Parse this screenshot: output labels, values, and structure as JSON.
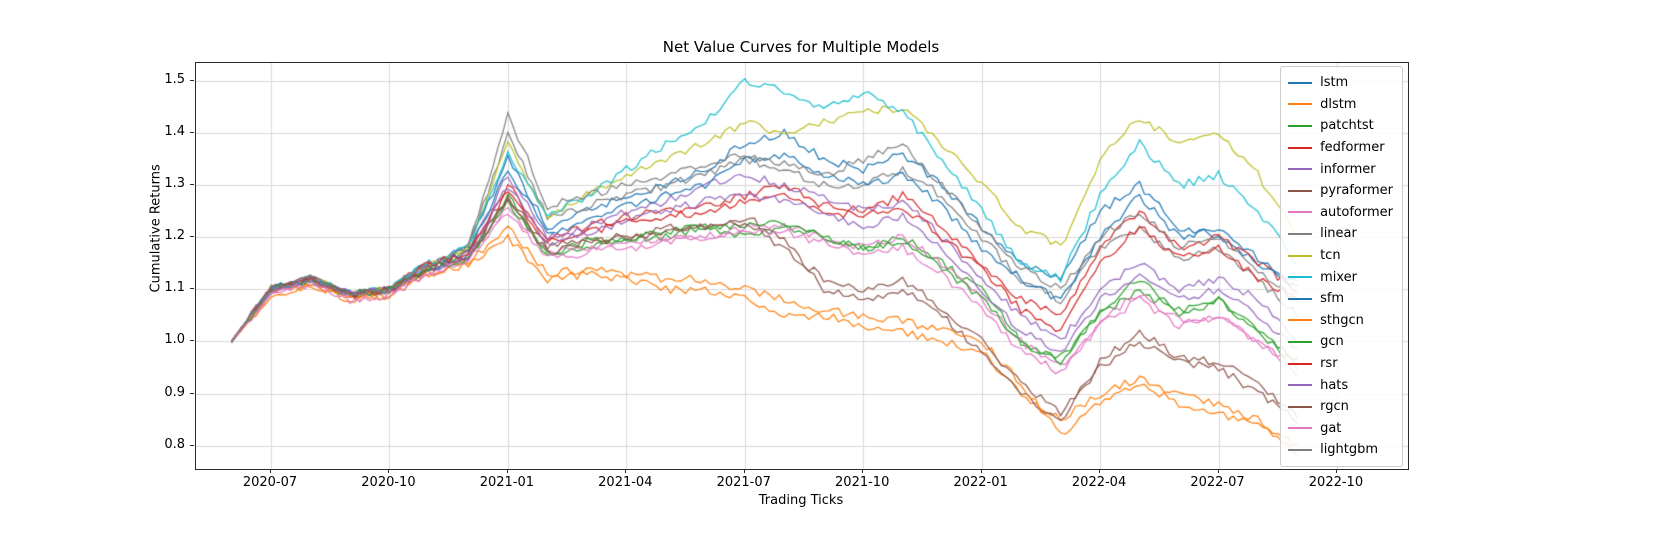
{
  "chart_data": {
    "type": "line",
    "title": "Net Value Curves for Multiple Models",
    "xlabel": "Trading Ticks",
    "ylabel": "Cumulative Returns",
    "grid": true,
    "legend_position": "upper right",
    "x_start": "2020-06",
    "x_interval": "month",
    "x_tick_labels": [
      "2020-07",
      "2020-10",
      "2021-01",
      "2021-04",
      "2021-07",
      "2021-10",
      "2022-01",
      "2022-04",
      "2022-07",
      "2022-10"
    ],
    "x_tick_positions": [
      1,
      4,
      7,
      10,
      13,
      16,
      19,
      22,
      25,
      28
    ],
    "y_ticks": [
      0.8,
      0.9,
      1.0,
      1.1,
      1.2,
      1.3,
      1.4,
      1.5
    ],
    "xlim": [
      -0.9,
      29.8
    ],
    "ylim": [
      0.755,
      1.535
    ],
    "series": [
      {
        "name": "lstm",
        "color": "#1f77b4",
        "values": [
          1.0,
          1.1,
          1.12,
          1.09,
          1.1,
          1.15,
          1.18,
          1.35,
          1.22,
          1.25,
          1.28,
          1.3,
          1.33,
          1.38,
          1.4,
          1.35,
          1.33,
          1.36,
          1.3,
          1.22,
          1.15,
          1.12,
          1.25,
          1.3,
          1.22,
          1.2,
          1.15,
          1.12
        ]
      },
      {
        "name": "dlstm",
        "color": "#ff7f0e",
        "values": [
          1.0,
          1.09,
          1.11,
          1.08,
          1.09,
          1.13,
          1.15,
          1.2,
          1.12,
          1.13,
          1.12,
          1.1,
          1.1,
          1.08,
          1.05,
          1.05,
          1.03,
          1.02,
          1.0,
          0.98,
          0.9,
          0.85,
          0.9,
          0.93,
          0.9,
          0.88,
          0.85,
          0.78
        ]
      },
      {
        "name": "patchtst",
        "color": "#2ca02c",
        "values": [
          1.0,
          1.1,
          1.12,
          1.09,
          1.1,
          1.14,
          1.17,
          1.28,
          1.16,
          1.18,
          1.2,
          1.2,
          1.22,
          1.2,
          1.22,
          1.2,
          1.18,
          1.2,
          1.15,
          1.1,
          1.0,
          0.97,
          1.05,
          1.1,
          1.05,
          1.08,
          1.02,
          0.95
        ]
      },
      {
        "name": "fedformer",
        "color": "#d62728",
        "values": [
          1.0,
          1.1,
          1.12,
          1.09,
          1.1,
          1.15,
          1.17,
          1.3,
          1.2,
          1.22,
          1.24,
          1.25,
          1.26,
          1.28,
          1.3,
          1.26,
          1.25,
          1.28,
          1.22,
          1.15,
          1.08,
          1.05,
          1.18,
          1.25,
          1.18,
          1.2,
          1.15,
          1.1
        ]
      },
      {
        "name": "informer",
        "color": "#9467bd",
        "values": [
          1.0,
          1.1,
          1.12,
          1.09,
          1.1,
          1.14,
          1.17,
          1.32,
          1.2,
          1.22,
          1.25,
          1.27,
          1.3,
          1.32,
          1.3,
          1.28,
          1.25,
          1.27,
          1.2,
          1.12,
          1.05,
          1.0,
          1.1,
          1.15,
          1.1,
          1.12,
          1.08,
          1.0
        ]
      },
      {
        "name": "pyraformer",
        "color": "#8c564b",
        "values": [
          1.0,
          1.1,
          1.12,
          1.09,
          1.1,
          1.14,
          1.16,
          1.28,
          1.18,
          1.2,
          1.2,
          1.22,
          1.22,
          1.24,
          1.2,
          1.1,
          1.08,
          1.1,
          1.05,
          0.98,
          0.9,
          0.85,
          0.95,
          1.0,
          0.96,
          0.95,
          0.9,
          0.85
        ]
      },
      {
        "name": "autoformer",
        "color": "#e377c2",
        "values": [
          1.0,
          1.09,
          1.11,
          1.08,
          1.09,
          1.13,
          1.16,
          1.26,
          1.17,
          1.18,
          1.19,
          1.2,
          1.2,
          1.22,
          1.22,
          1.2,
          1.18,
          1.2,
          1.15,
          1.08,
          1.0,
          0.95,
          1.03,
          1.08,
          1.03,
          1.05,
          1.0,
          0.95
        ]
      },
      {
        "name": "linear",
        "color": "#7f7f7f",
        "values": [
          1.0,
          1.1,
          1.12,
          1.09,
          1.1,
          1.15,
          1.18,
          1.4,
          1.24,
          1.26,
          1.28,
          1.3,
          1.32,
          1.35,
          1.33,
          1.3,
          1.3,
          1.33,
          1.28,
          1.2,
          1.12,
          1.08,
          1.18,
          1.22,
          1.16,
          1.18,
          1.12,
          1.05
        ]
      },
      {
        "name": "tcn",
        "color": "#bcbd22",
        "values": [
          1.0,
          1.1,
          1.12,
          1.09,
          1.1,
          1.15,
          1.18,
          1.38,
          1.24,
          1.28,
          1.32,
          1.35,
          1.38,
          1.42,
          1.4,
          1.42,
          1.44,
          1.45,
          1.38,
          1.3,
          1.22,
          1.18,
          1.35,
          1.43,
          1.38,
          1.4,
          1.32,
          1.2
        ]
      },
      {
        "name": "mixer",
        "color": "#17becf",
        "values": [
          1.0,
          1.1,
          1.12,
          1.09,
          1.1,
          1.15,
          1.18,
          1.36,
          1.24,
          1.28,
          1.33,
          1.38,
          1.42,
          1.5,
          1.48,
          1.45,
          1.48,
          1.44,
          1.35,
          1.25,
          1.15,
          1.12,
          1.28,
          1.38,
          1.3,
          1.32,
          1.25,
          1.15
        ]
      },
      {
        "name": "sfm",
        "color": "#1f77b4",
        "values": [
          1.0,
          1.1,
          1.12,
          1.09,
          1.1,
          1.14,
          1.17,
          1.33,
          1.21,
          1.23,
          1.26,
          1.28,
          1.3,
          1.35,
          1.36,
          1.32,
          1.3,
          1.32,
          1.26,
          1.18,
          1.12,
          1.08,
          1.2,
          1.28,
          1.2,
          1.22,
          1.16,
          1.1
        ]
      },
      {
        "name": "sthgcn",
        "color": "#ff7f0e",
        "values": [
          1.0,
          1.09,
          1.11,
          1.08,
          1.09,
          1.13,
          1.15,
          1.22,
          1.13,
          1.14,
          1.13,
          1.12,
          1.12,
          1.1,
          1.08,
          1.06,
          1.05,
          1.04,
          1.02,
          1.0,
          0.92,
          0.82,
          0.88,
          0.92,
          0.88,
          0.86,
          0.84,
          0.8
        ]
      },
      {
        "name": "gcn",
        "color": "#2ca02c",
        "values": [
          1.0,
          1.1,
          1.12,
          1.09,
          1.1,
          1.14,
          1.16,
          1.27,
          1.17,
          1.19,
          1.2,
          1.21,
          1.22,
          1.22,
          1.23,
          1.2,
          1.18,
          1.19,
          1.14,
          1.08,
          1.0,
          0.96,
          1.06,
          1.12,
          1.06,
          1.08,
          1.02,
          0.96
        ]
      },
      {
        "name": "rsr",
        "color": "#d62728",
        "values": [
          1.0,
          1.1,
          1.12,
          1.09,
          1.1,
          1.15,
          1.17,
          1.29,
          1.19,
          1.21,
          1.23,
          1.24,
          1.25,
          1.27,
          1.28,
          1.25,
          1.24,
          1.26,
          1.2,
          1.14,
          1.06,
          1.02,
          1.15,
          1.22,
          1.16,
          1.18,
          1.12,
          1.08
        ]
      },
      {
        "name": "hats",
        "color": "#9467bd",
        "values": [
          1.0,
          1.1,
          1.12,
          1.09,
          1.1,
          1.14,
          1.16,
          1.3,
          1.19,
          1.21,
          1.23,
          1.25,
          1.27,
          1.28,
          1.27,
          1.25,
          1.22,
          1.24,
          1.18,
          1.1,
          1.02,
          0.98,
          1.08,
          1.13,
          1.08,
          1.1,
          1.05,
          0.98
        ]
      },
      {
        "name": "rgcn",
        "color": "#8c564b",
        "values": [
          1.0,
          1.1,
          1.12,
          1.09,
          1.1,
          1.14,
          1.16,
          1.27,
          1.17,
          1.19,
          1.2,
          1.21,
          1.22,
          1.23,
          1.18,
          1.12,
          1.1,
          1.12,
          1.06,
          1.0,
          0.92,
          0.86,
          0.96,
          1.02,
          0.97,
          0.96,
          0.92,
          0.86
        ]
      },
      {
        "name": "gat",
        "color": "#e377c2",
        "values": [
          1.0,
          1.09,
          1.11,
          1.08,
          1.09,
          1.13,
          1.16,
          1.25,
          1.16,
          1.17,
          1.18,
          1.19,
          1.2,
          1.21,
          1.21,
          1.19,
          1.17,
          1.18,
          1.13,
          1.06,
          0.98,
          0.94,
          1.04,
          1.09,
          1.04,
          1.05,
          1.0,
          0.94
        ]
      },
      {
        "name": "lightgbm",
        "color": "#7f7f7f",
        "values": [
          1.0,
          1.1,
          1.12,
          1.09,
          1.1,
          1.15,
          1.18,
          1.44,
          1.26,
          1.28,
          1.3,
          1.32,
          1.34,
          1.36,
          1.34,
          1.32,
          1.35,
          1.38,
          1.3,
          1.22,
          1.14,
          1.1,
          1.2,
          1.25,
          1.18,
          1.2,
          1.14,
          1.08
        ]
      }
    ]
  }
}
